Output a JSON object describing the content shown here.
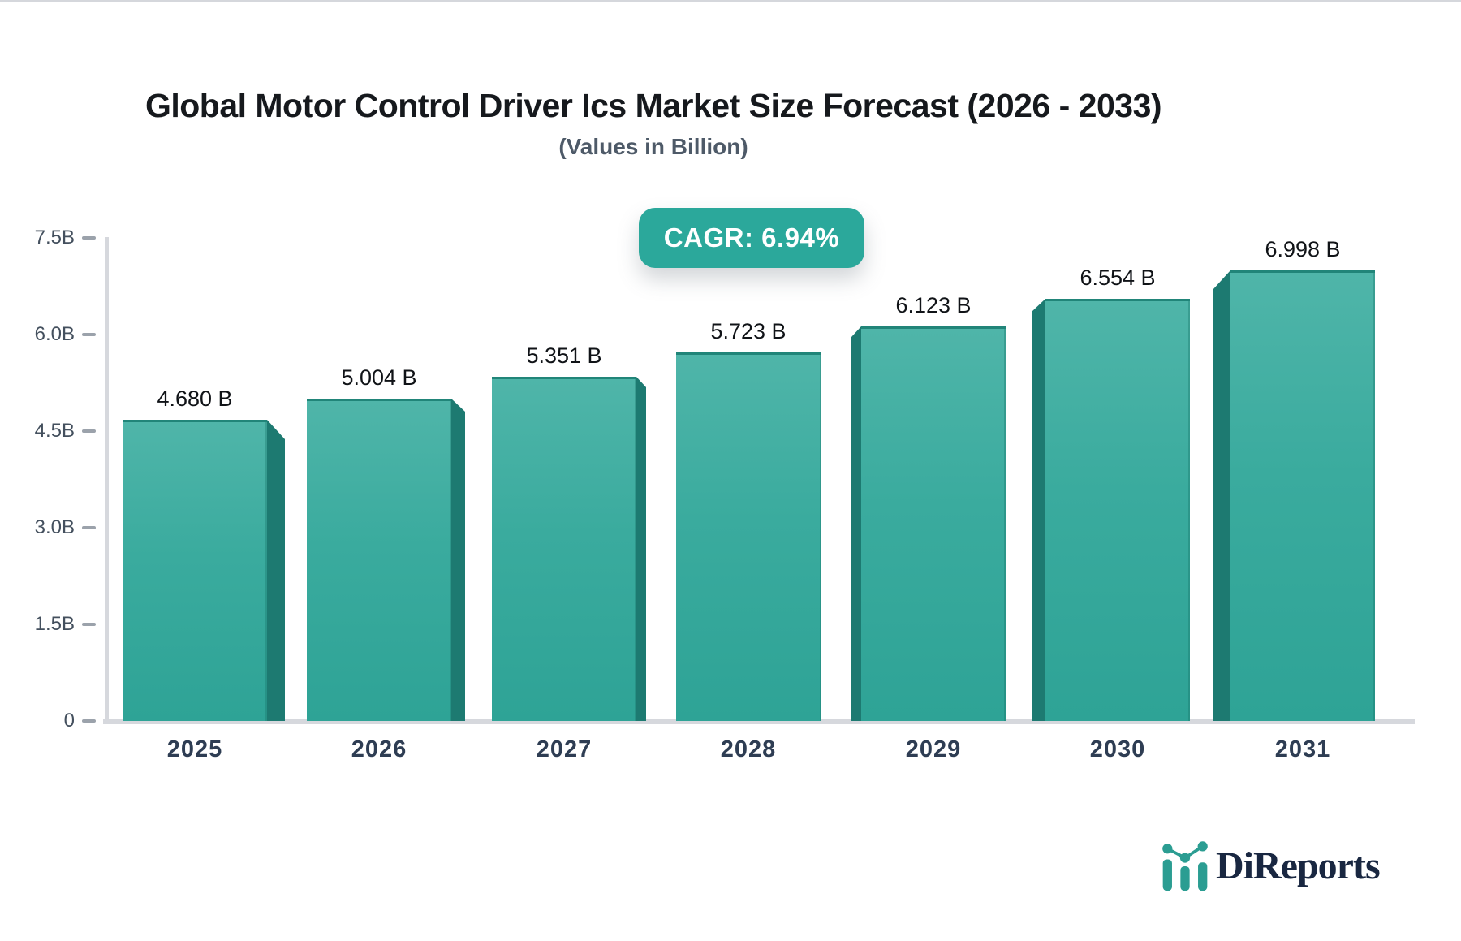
{
  "header": {
    "title": "Global Motor Control Driver Ics Market Size Forecast (2026 - 2033)",
    "subtitle": "(Values in Billion)"
  },
  "badge": {
    "label": "CAGR: 6.94%"
  },
  "chart_data": {
    "type": "bar",
    "title": "Global Motor Control Driver Ics Market Size Forecast (2026 - 2033)",
    "subtitle": "(Values in Billion)",
    "categories": [
      "2025",
      "2026",
      "2027",
      "2028",
      "2029",
      "2030",
      "2031"
    ],
    "values": [
      4.68,
      5.004,
      5.351,
      5.723,
      6.123,
      6.554,
      6.998
    ],
    "labels": [
      "4.680 B",
      "5.004 B",
      "5.351 B",
      "5.723 B",
      "6.123 B",
      "6.554 B",
      "6.998 B"
    ],
    "ylim": [
      0,
      7.5
    ],
    "ytick_values": [
      7.5,
      6.0,
      4.5,
      3.0,
      1.5,
      0
    ],
    "ytick_labels": [
      "7.5B",
      "6.0B",
      "4.5B",
      "3.0B",
      "1.5B",
      "0"
    ],
    "xlabel": "",
    "ylabel": "",
    "grid": false,
    "legend": false,
    "annotation": "CAGR: 6.94%",
    "bar_face_color": "#3aab9e",
    "bar_side_color": "#1d7a71",
    "axis_color": "#d6d8dd"
  },
  "branding": {
    "logo_text": "DiReports",
    "logo_accent": "#2b9d92",
    "logo_text_color": "#192741"
  }
}
